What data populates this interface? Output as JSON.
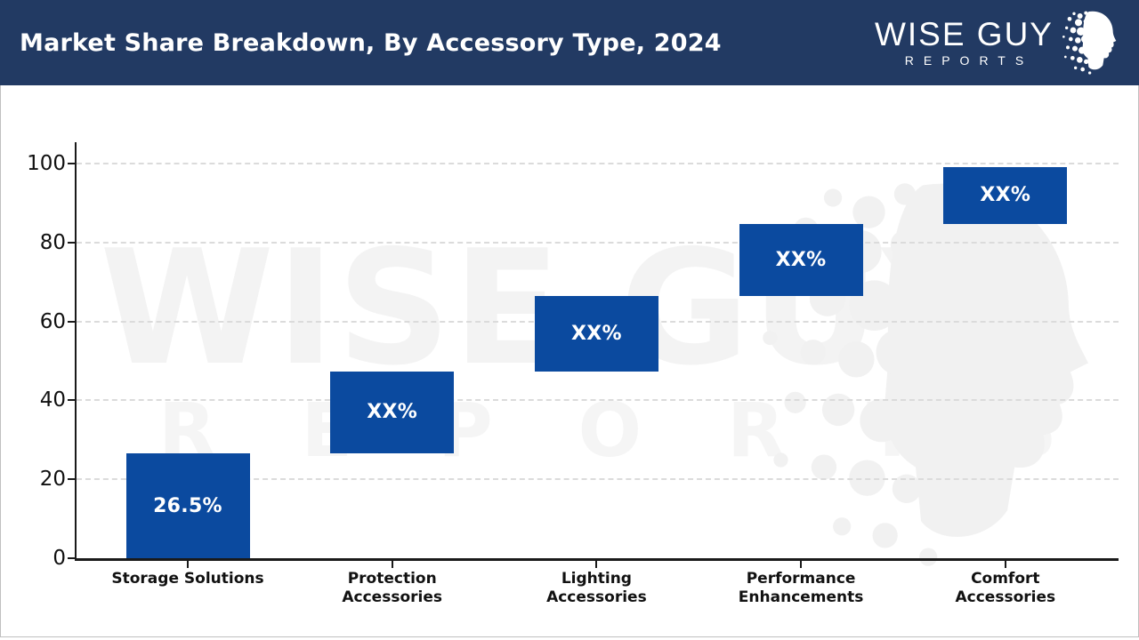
{
  "header": {
    "title": "Market Share Breakdown, By Accessory Type, 2024",
    "bg_color": "#223a63",
    "logo": {
      "line1": "WISE GUY",
      "line2": "REPORTS"
    }
  },
  "watermark": {
    "line1": "WISE GUY",
    "line2": "REPORTS"
  },
  "chart_data": {
    "type": "bar",
    "subtype": "waterfall",
    "title": "Market Share Breakdown, By Accessory Type, 2024",
    "xlabel": "",
    "ylabel": "",
    "ylim": [
      0,
      105
    ],
    "yticks": [
      0,
      20,
      40,
      60,
      80,
      100
    ],
    "grid": "horizontal-dashed",
    "legend": "none",
    "bar_color": "#0b4a9f",
    "bar_label_color": "#ffffff",
    "categories": [
      "Storage Solutions",
      "Protection Accessories",
      "Lighting Accessories",
      "Performance Enhancements",
      "Comfort Accessories"
    ],
    "series": [
      {
        "name": "Market Share (%)",
        "segments": [
          {
            "label": "26.5%",
            "start": 0,
            "end": 26.5
          },
          {
            "label": "XX%",
            "start": 26.5,
            "end": 47.4
          },
          {
            "label": "XX%",
            "start": 47.4,
            "end": 66.4
          },
          {
            "label": "XX%",
            "start": 66.4,
            "end": 84.7
          },
          {
            "label": "XX%",
            "start": 84.7,
            "end": 99.2
          }
        ],
        "increments": [
          26.5,
          20.9,
          19.0,
          18.3,
          14.5
        ]
      }
    ]
  }
}
